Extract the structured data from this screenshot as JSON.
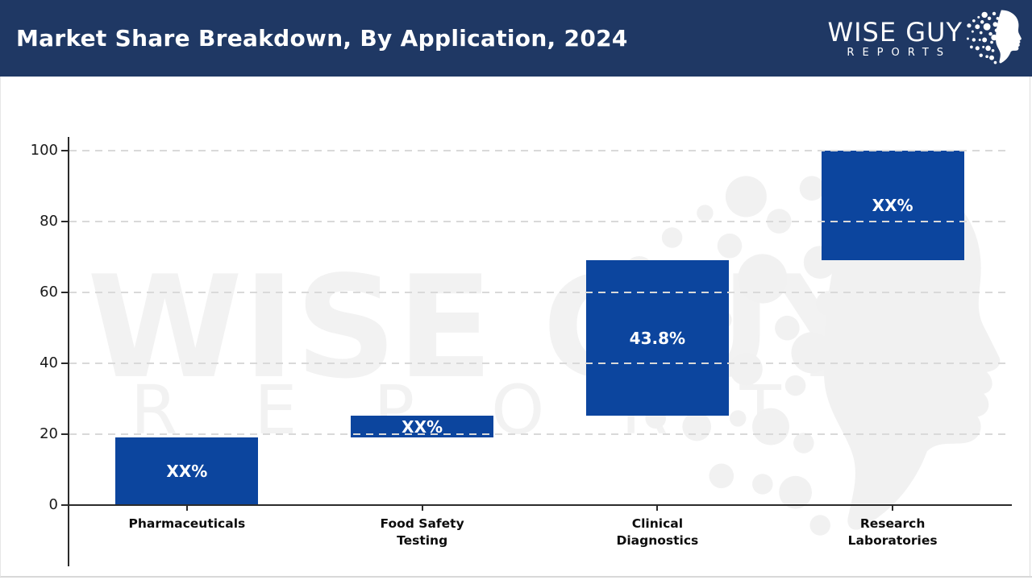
{
  "header": {
    "title": "Market Share Breakdown, By Application, 2024",
    "brand": {
      "line1": "WISE GUY",
      "line2": "REPORTS"
    }
  },
  "watermark": {
    "line1": "WISE GUY",
    "line2": "REPORTS"
  },
  "colors": {
    "header_bg": "#1f3864",
    "bar": "#0c459e",
    "gridline": "#d9d9d9",
    "axis": "#2b2b2b",
    "watermark": "#f2f2f2",
    "bar_label": "#ffffff"
  },
  "chart_data": {
    "type": "bar",
    "subtype": "waterfall-floating-bars",
    "title": "Market Share Breakdown, By Application, 2024",
    "categories": [
      "Pharmaceuticals",
      "Food Safety\nTesting",
      "Clinical\nDiagnostics",
      "Research\nLaboratories"
    ],
    "segments": [
      {
        "category": "Pharmaceuticals",
        "start": 0,
        "end": 19,
        "label": "XX%"
      },
      {
        "category": "Food Safety Testing",
        "start": 19,
        "end": 25.2,
        "label": "XX%"
      },
      {
        "category": "Clinical Diagnostics",
        "start": 25.2,
        "end": 69,
        "label": "43.8%"
      },
      {
        "category": "Research Laboratories",
        "start": 69,
        "end": 100,
        "label": "XX%"
      }
    ],
    "ylim": [
      0,
      100
    ],
    "yticks": [
      0,
      20,
      40,
      60,
      80,
      100
    ],
    "xlabel": "",
    "ylabel": "",
    "grid": "horizontal-dashed",
    "legend": false
  }
}
